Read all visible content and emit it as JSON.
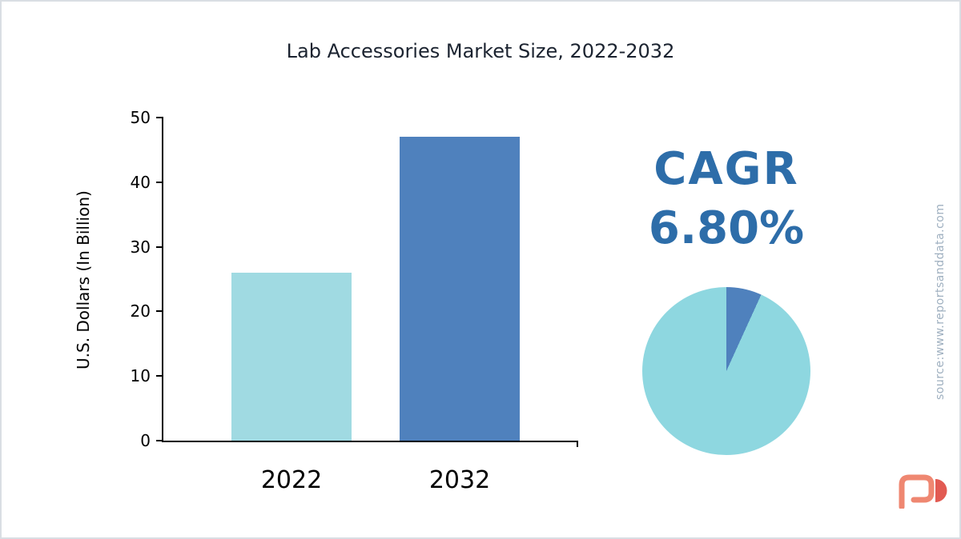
{
  "chart_data": [
    {
      "type": "bar",
      "title": "Lab Accessories Market Size, 2022-2032",
      "categories": [
        "2022",
        "2032"
      ],
      "values": [
        26,
        47
      ],
      "xlabel": "",
      "ylabel": "U.S. Dollars (In Billion)",
      "ylim": [
        0,
        50
      ],
      "yticks": [
        0,
        10,
        20,
        30,
        40,
        50
      ],
      "bar_colors": [
        "#a0dae2",
        "#4f81bd"
      ],
      "grid": false,
      "legend": "none"
    },
    {
      "type": "pie",
      "labels": [
        "CAGR highlight slice",
        "remainder"
      ],
      "values": [
        6.8,
        93.2
      ],
      "colors": [
        "#4f81bd",
        "#8ed7e0"
      ],
      "start_angle_deg": 0,
      "direction": "clockwise"
    }
  ],
  "cagr": {
    "label": "CAGR",
    "value": "6.80%",
    "color": "#2d6da9"
  },
  "watermark": {
    "source": "source:www.reportsanddata.com"
  },
  "logo": {
    "name": "reports-and-data-logo",
    "colors": [
      "#ef8771",
      "#e25a52"
    ]
  }
}
